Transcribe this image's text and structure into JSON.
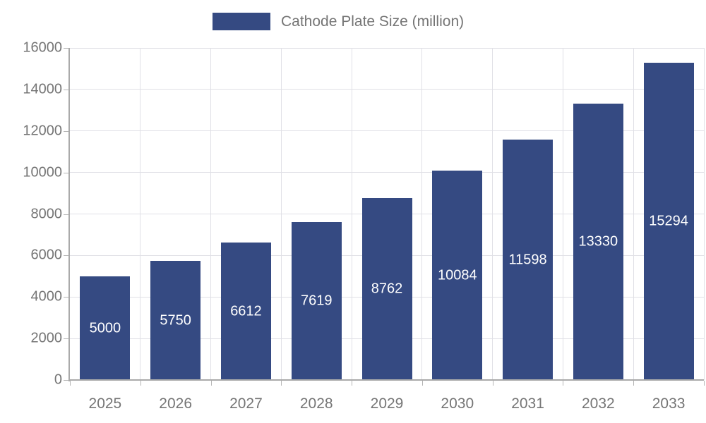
{
  "legend": {
    "label": "Cathode Plate Size (million)",
    "swatch_color": "#354a82"
  },
  "chart_data": {
    "type": "bar",
    "title": "Cathode Plate Size (million)",
    "categories": [
      "2025",
      "2026",
      "2027",
      "2028",
      "2029",
      "2030",
      "2031",
      "2032",
      "2033"
    ],
    "series": [
      {
        "name": "Cathode Plate Size (million)",
        "values": [
          5000,
          5750,
          6612,
          7619,
          8762,
          10084,
          11598,
          13330,
          15294
        ]
      }
    ],
    "xlabel": "",
    "ylabel": "",
    "ylim": [
      0,
      16000
    ],
    "y_ticks": [
      0,
      2000,
      4000,
      6000,
      8000,
      10000,
      12000,
      14000,
      16000
    ],
    "grid": true,
    "legend_position": "top",
    "bar_color": "#354a82",
    "value_label_color": "#ffffff",
    "axis_text_color": "#757575",
    "axis_line_color": "#aaaaaa",
    "gridline_color": "#e0e0e6"
  }
}
